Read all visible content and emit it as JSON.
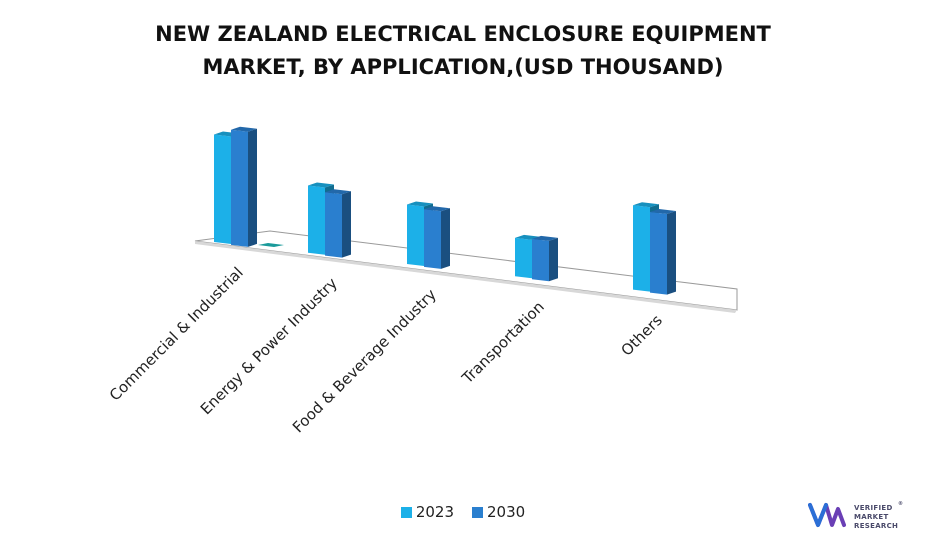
{
  "chart_data": {
    "type": "bar",
    "title_lines": [
      "NEW ZEALAND ELECTRICAL ENCLOSURE EQUIPMENT",
      "MARKET, BY APPLICATION,(USD THOUSAND)"
    ],
    "categories": [
      "Commercial & Industrial",
      "Energy & Power Industry",
      "Food & Beverage Industry",
      "Transportation",
      "Others"
    ],
    "series": [
      {
        "name": "2023",
        "color": "#1cb0e8",
        "values": [
          112,
          70,
          62,
          40,
          88
        ]
      },
      {
        "name": "2030",
        "color": "#2a7fcf",
        "values": [
          120,
          66,
          60,
          42,
          84
        ]
      }
    ],
    "legend_position": "bottom",
    "grid": false
  },
  "brand": {
    "lines": [
      "VERIFIED",
      "MARKET",
      "RESEARCH"
    ],
    "registered": "®"
  }
}
